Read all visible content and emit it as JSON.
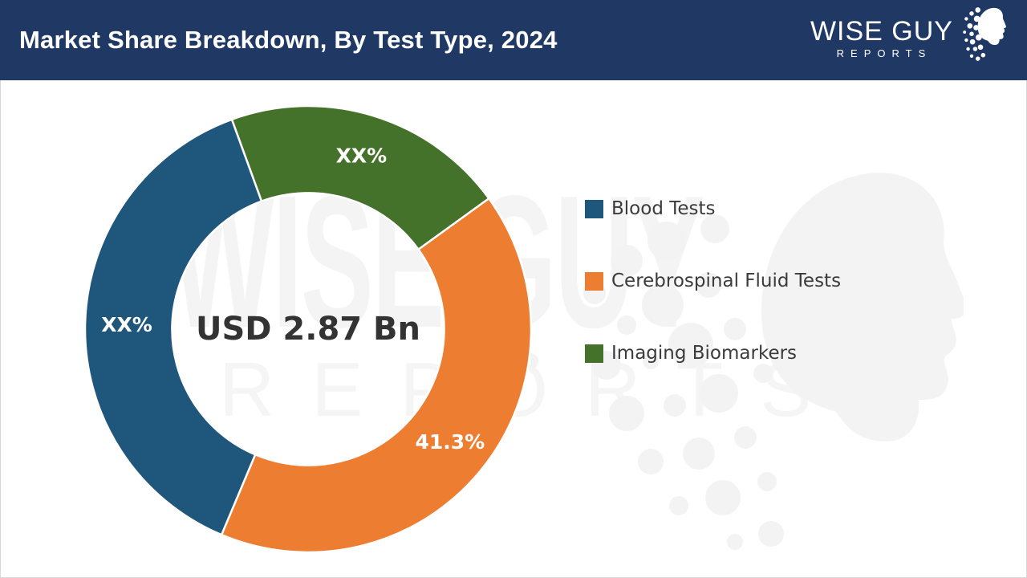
{
  "header": {
    "title": "Market Share Breakdown, By Test Type, 2024"
  },
  "brand": {
    "name": "WISE GUY",
    "tagline": "REPORTS"
  },
  "watermark": {
    "text_primary": "WISE GUY",
    "text_secondary": "REPORTS"
  },
  "chart_data": {
    "type": "pie",
    "subtype": "donut",
    "title": "Market Share Breakdown, By Test Type, 2024",
    "center_label": "USD 2.87 Bn",
    "segments": [
      {
        "name": "Blood Tests",
        "display_label": "XX%",
        "share_pct_est": 38.1,
        "color": "#1f567b",
        "label_color": "#ffffff"
      },
      {
        "name": "Cerebrospinal Fluid Tests",
        "display_label": "41.3%",
        "share_pct_est": 41.3,
        "color": "#ed7d31",
        "label_color": "#ffffff"
      },
      {
        "name": "Imaging Biomarkers",
        "display_label": "XX%",
        "share_pct_est": 20.6,
        "color": "#44722a",
        "label_color": "#ffffff"
      }
    ],
    "start_angle_deg": 110,
    "direction": "clockwise",
    "draw_order": [
      2,
      1,
      0
    ],
    "donut_hole_ratio": 0.61,
    "legend_position": "right",
    "annotations_visible": [
      "XX%",
      "41.3%",
      "XX%"
    ]
  },
  "colors": {
    "header_bg": "#1f3864",
    "accent_blue": "#1f567b",
    "accent_orange": "#ed7d31",
    "accent_green": "#44722a",
    "center_text": "#333333",
    "legend_text": "#3b3b3b",
    "watermark": "#f4f4f4",
    "border": "#d9d9d9"
  }
}
